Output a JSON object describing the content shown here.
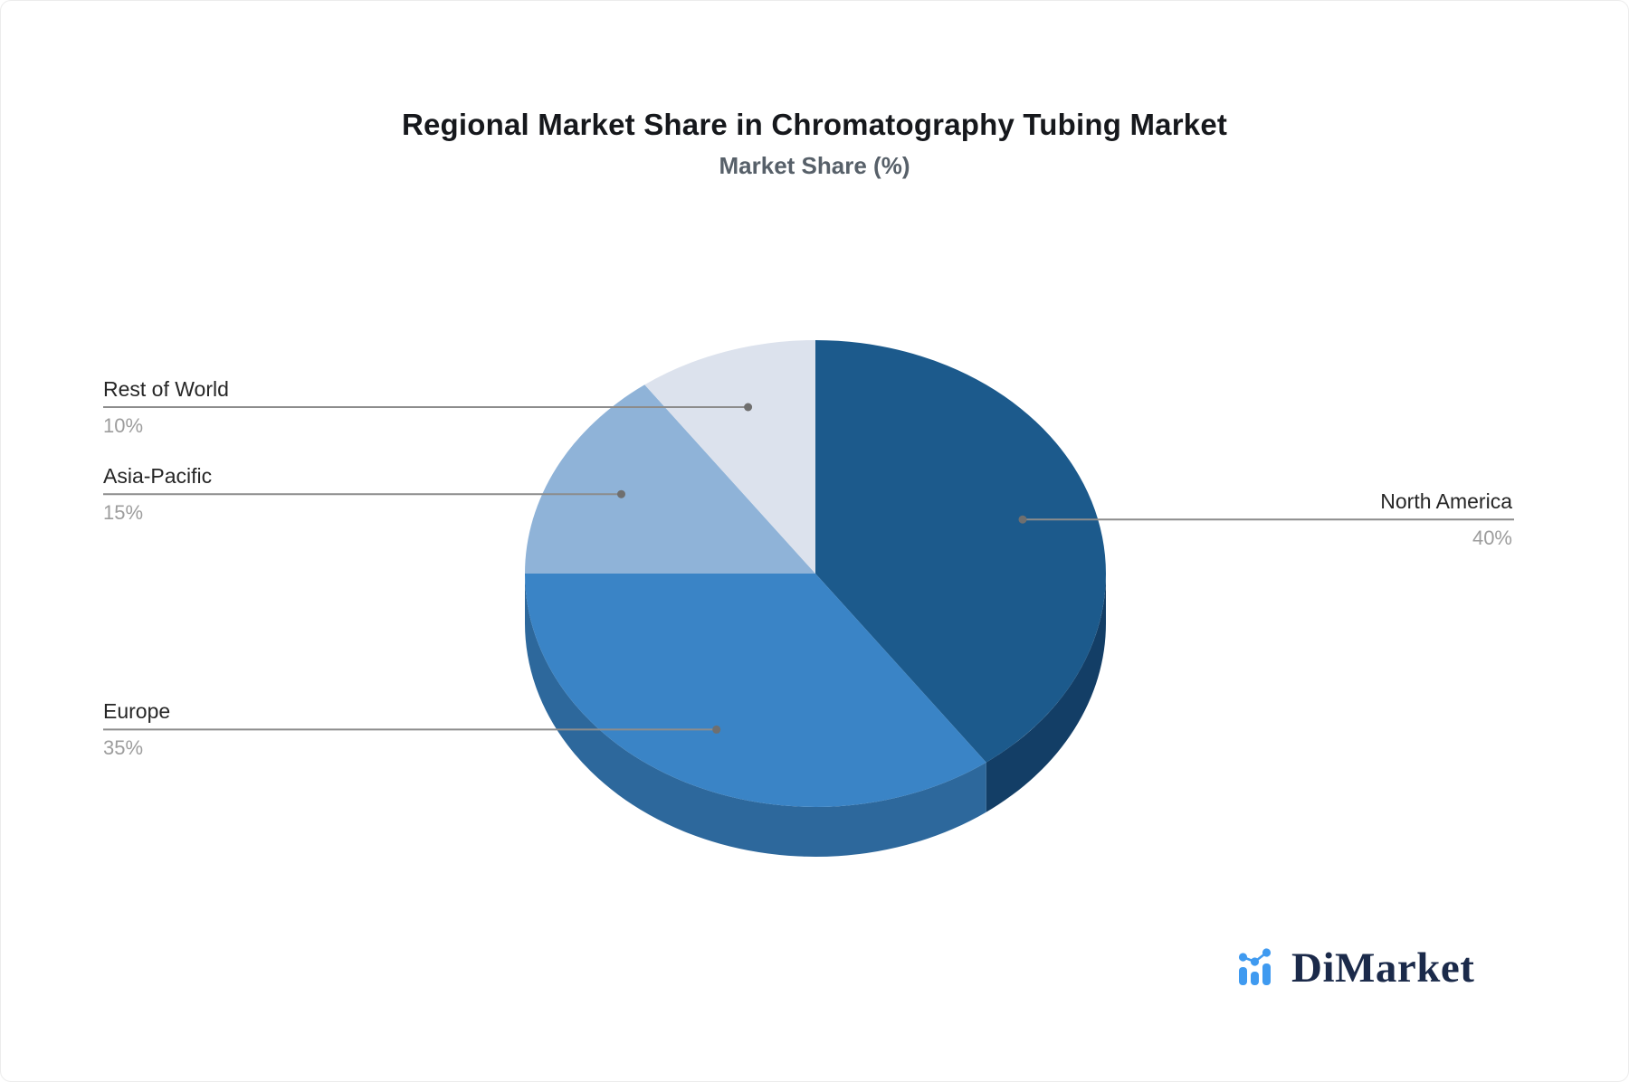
{
  "chart_data": {
    "type": "pie",
    "style": "3d",
    "title": "Regional Market Share in Chromatography Tubing Market",
    "subtitle": "Market Share (%)",
    "unit": "%",
    "legend_position": "callout-labels",
    "categories": [
      "North America",
      "Europe",
      "Asia-Pacific",
      "Rest of World"
    ],
    "values": [
      40,
      35,
      15,
      10
    ],
    "slices": [
      {
        "label": "North America",
        "value": 40,
        "display": "40%",
        "color": "#1c5a8c",
        "side_color": "#133e66",
        "label_side": "right"
      },
      {
        "label": "Europe",
        "value": 35,
        "display": "35%",
        "color": "#3a84c6",
        "side_color": "#2d689c",
        "label_side": "left"
      },
      {
        "label": "Asia-Pacific",
        "value": 15,
        "display": "15%",
        "color": "#8fb3d8",
        "side_color": "#7396b8",
        "label_side": "left"
      },
      {
        "label": "Rest of World",
        "value": 10,
        "display": "10%",
        "color": "#dce2ed",
        "side_color": "#b9c4d4",
        "label_side": "left"
      }
    ],
    "colors": {
      "leader_line": "#8c8c8c",
      "leader_dot": "#6f6f6f",
      "label_text": "#262626",
      "value_text": "#9d9d9d",
      "title_text": "#16181c",
      "subtitle_text": "#576069"
    }
  },
  "branding": {
    "logo_text": "DiMarket",
    "logo_icon": "bar-line-chart-icon",
    "icon_color": "#3f9af0",
    "text_color": "#1b2a4a"
  }
}
